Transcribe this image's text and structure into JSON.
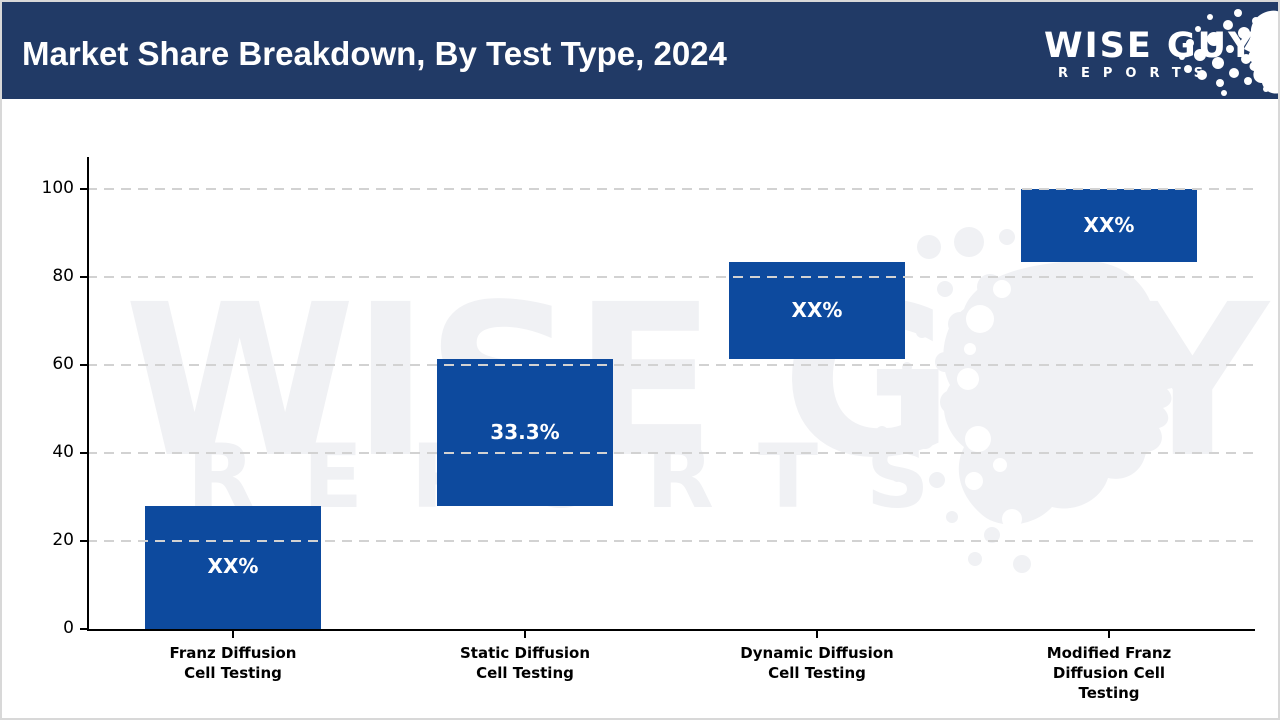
{
  "header": {
    "title": "Market Share Breakdown, By Test Type, 2024",
    "logo": {
      "wordmark": "WISE GUY",
      "subtext": "REPORTS"
    }
  },
  "watermark": {
    "line1": "WISE GUY",
    "line2": "REPORTS"
  },
  "colors": {
    "header_background": "#213a66",
    "bar_fill": "#0d4a9e",
    "bar_label": "#ffffff",
    "gridline": "#d2d2d2",
    "axis": "#000000",
    "watermark": "#f0f1f4"
  },
  "chart_data": {
    "type": "bar",
    "subtype": "waterfall (floating stacked segments)",
    "title": "Market Share Breakdown, By Test Type, 2024",
    "units": "%",
    "categories": [
      "Franz Diffusion\nCell Testing",
      "Static Diffusion\nCell Testing",
      "Dynamic Diffusion\nCell Testing",
      "Modified Franz\nDiffusion Cell\nTesting"
    ],
    "bars": [
      {
        "category": "Franz Diffusion Cell Testing",
        "value_label": "XX%",
        "start": 0,
        "end": 28,
        "height": 28
      },
      {
        "category": "Static Diffusion Cell Testing",
        "value_label": "33.3%",
        "start": 28,
        "end": 61.3,
        "height": 33.3
      },
      {
        "category": "Dynamic Diffusion Cell Testing",
        "value_label": "XX%",
        "start": 61.3,
        "end": 83.4,
        "height": 22.1
      },
      {
        "category": "Modified Franz Diffusion Cell Testing",
        "value_label": "XX%",
        "start": 83.4,
        "end": 100,
        "height": 16.6
      }
    ],
    "yticks": [
      0,
      20,
      40,
      60,
      80,
      100
    ],
    "ylim": [
      0,
      105
    ],
    "xlabel": "",
    "ylabel": "",
    "legend": null,
    "grid": {
      "horizontal": true,
      "style": "dashed",
      "drawn_above_bars": true
    }
  }
}
